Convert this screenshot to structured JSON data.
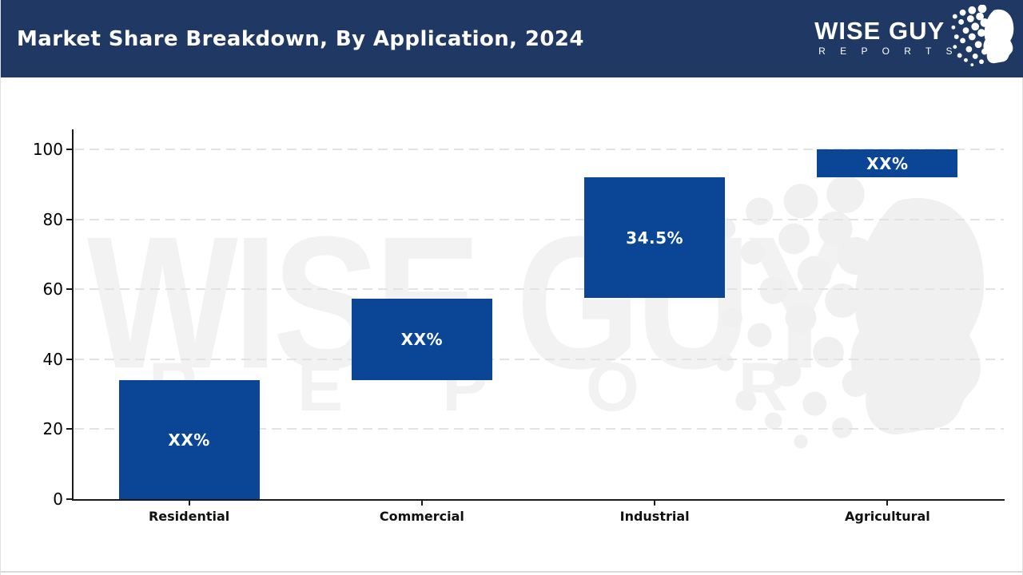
{
  "header": {
    "title": "Market Share Breakdown, By Application, 2024",
    "bg_color": "#1f3864",
    "logo": {
      "line1": "WISE GUY",
      "line2": "R E P O R T S"
    }
  },
  "watermark": {
    "line1": "WISE GUY",
    "line2": "R E P O R T S"
  },
  "chart_data": {
    "type": "bar",
    "variant": "floating-waterfall",
    "title": "Market Share Breakdown, By Application, 2024",
    "categories": [
      "Residential",
      "Commercial",
      "Industrial",
      "Agricultural"
    ],
    "segments": [
      {
        "category": "Residential",
        "start": 0,
        "end": 34,
        "label": "XX%"
      },
      {
        "category": "Commercial",
        "start": 34,
        "end": 57.3,
        "label": "XX%"
      },
      {
        "category": "Industrial",
        "start": 57.5,
        "end": 92,
        "label": "34.5%"
      },
      {
        "category": "Agricultural",
        "start": 92,
        "end": 100,
        "label": "XX%"
      }
    ],
    "ylim": [
      0,
      100
    ],
    "yticks": [
      0,
      20,
      40,
      60,
      80,
      100
    ],
    "xlabel": "",
    "ylabel": "",
    "grid": "horizontal-dashed",
    "legend": "none",
    "bar_color": "#0b4696",
    "bar_label_color": "#ffffff",
    "axis_color": "#1a1a1a"
  }
}
